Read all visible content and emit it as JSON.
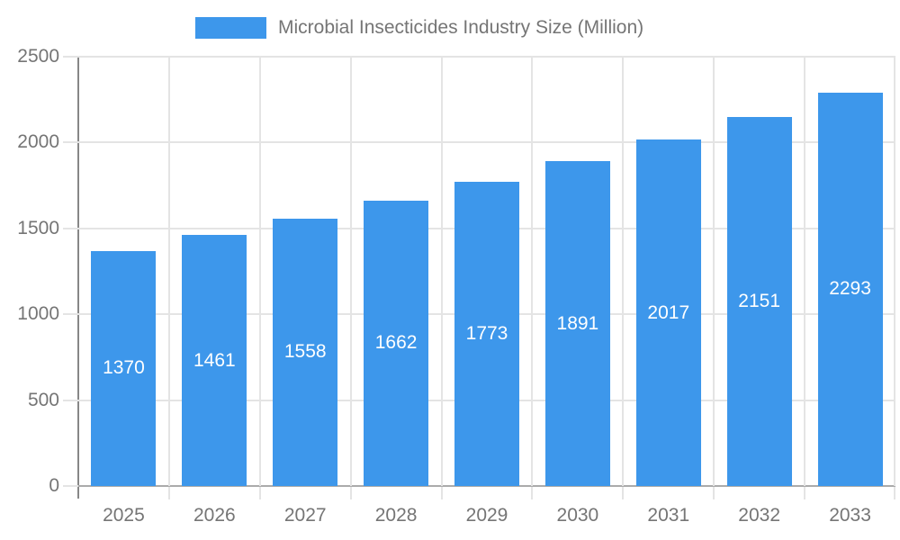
{
  "chart_data": {
    "type": "bar",
    "title": "Microbial Insecticides Industry Size (Million)",
    "categories": [
      "2025",
      "2026",
      "2027",
      "2028",
      "2029",
      "2030",
      "2031",
      "2032",
      "2033"
    ],
    "values": [
      1370,
      1461,
      1558,
      1662,
      1773,
      1891,
      2017,
      2151,
      2293
    ],
    "xlabel": "",
    "ylabel": "",
    "ylim": [
      0,
      2500
    ],
    "yticks": [
      0,
      500,
      1000,
      1500,
      2000,
      2500
    ],
    "grid": true,
    "legend": {
      "position": "top",
      "label": "Microbial Insecticides Industry Size (Million)"
    },
    "colors": {
      "bar": "#3D97EB",
      "grid": "#e4e4e4",
      "axis_y": "#878787",
      "axis_x": "#ababab",
      "tick_label": "#757575",
      "value_label": "#ffffff",
      "background": "#ffffff"
    }
  }
}
